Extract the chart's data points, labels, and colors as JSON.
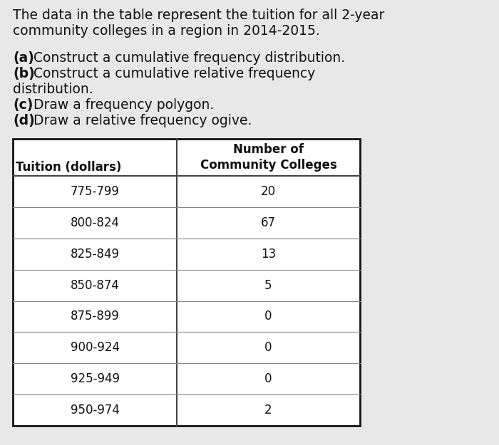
{
  "title_line1": "The data in the table represent the tuition for all 2-year",
  "title_line2": "community colleges in a region in 2014-2015.",
  "instructions": [
    [
      "(a)",
      " Construct a cumulative frequency distribution."
    ],
    [
      "(b)",
      " Construct a cumulative relative frequency"
    ],
    [
      "",
      "distribution."
    ],
    [
      "(c)",
      " Draw a frequency polygon."
    ],
    [
      "(d)",
      " Draw a relative frequency ogive."
    ]
  ],
  "col1_header_line1": "",
  "col1_header_line2": "Tuition (dollars)",
  "col2_header_line1": "Number of",
  "col2_header_line2": "Community Colleges",
  "rows": [
    [
      "775-799",
      "20"
    ],
    [
      "800-824",
      "67"
    ],
    [
      "825-849",
      "13"
    ],
    [
      "850-874",
      "5"
    ],
    [
      "875-899",
      "0"
    ],
    [
      "900-924",
      "0"
    ],
    [
      "925-949",
      "0"
    ],
    [
      "950-974",
      "2"
    ]
  ],
  "bg_color": "#e8e8e8",
  "text_color": "#111111",
  "title_fontsize": 13.5,
  "instr_fontsize": 13.5,
  "table_fontsize": 12
}
